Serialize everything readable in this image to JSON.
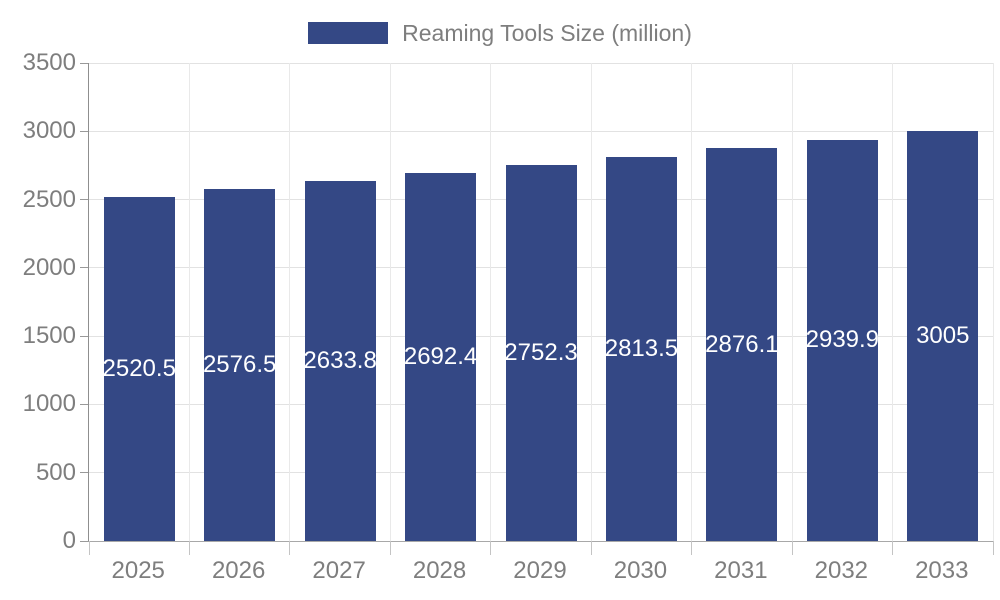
{
  "legend": {
    "label": "Reaming Tools Size (million)"
  },
  "colors": {
    "bar": "#344885",
    "bar_label": "#ffffff",
    "axis_text": "#7e7e7e",
    "grid_h": "#e2e2e2",
    "grid_v": "#e9e9e9",
    "y_axis_line": "#8f8f8f",
    "x_axis_line": "#a8a8a8"
  },
  "chart_data": {
    "type": "bar",
    "title": "Reaming Tools Size (million)",
    "categories": [
      "2025",
      "2026",
      "2027",
      "2028",
      "2029",
      "2030",
      "2031",
      "2032",
      "2033"
    ],
    "values": [
      2520.5,
      2576.5,
      2633.8,
      2692.4,
      2752.3,
      2813.5,
      2876.1,
      2939.9,
      3005
    ],
    "value_labels": [
      "2520.5",
      "2576.5",
      "2633.8",
      "2692.4",
      "2752.3",
      "2813.5",
      "2876.1",
      "2939.9",
      "3005"
    ],
    "xlabel": "",
    "ylabel": "",
    "ylim": [
      0,
      3500
    ],
    "yticks": [
      0,
      500,
      1000,
      1500,
      2000,
      2500,
      3000,
      3500
    ],
    "grid": true,
    "legend_position": "top-center",
    "bar_color": "#344885",
    "value_label_position": "inside-middle"
  }
}
